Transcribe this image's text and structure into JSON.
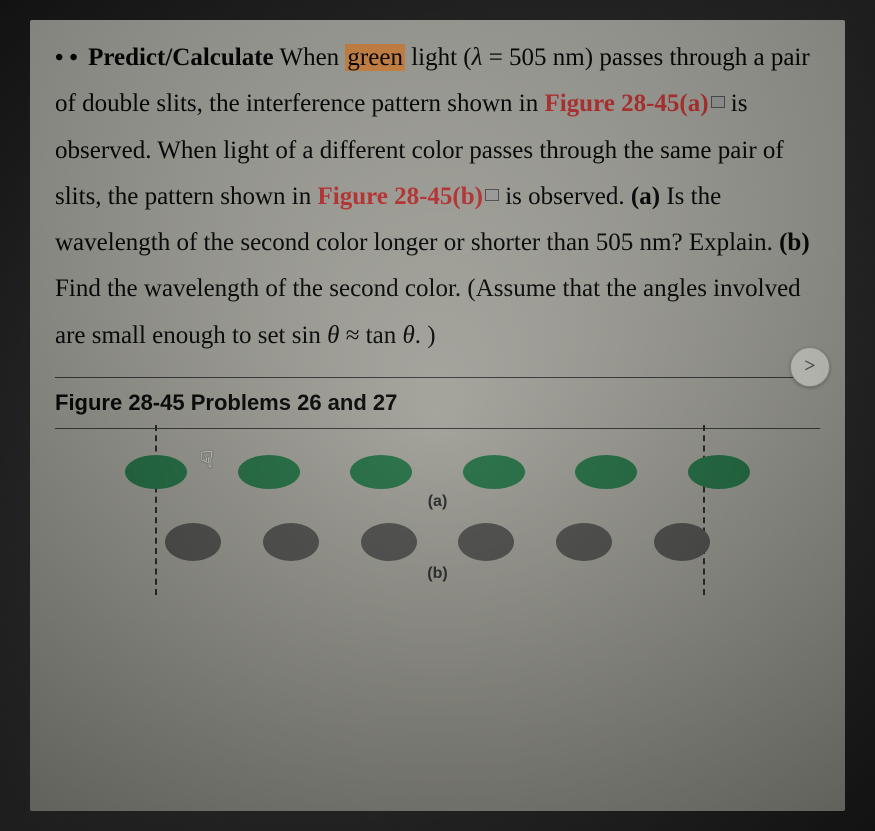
{
  "problem": {
    "bullets": "• •",
    "title": "Predict/Calculate",
    "text_part1": " When ",
    "highlighted": "green",
    "text_part2": " light (",
    "lambda": "λ",
    "text_part3": " = 505 nm) passes through a pair of double slits, the interference pattern shown in ",
    "figure_link_a": "Figure 28-45(a)",
    "text_part4": " is observed. When light of a different color passes through the same pair of slits, the pattern shown in ",
    "figure_link_b": "Figure 28-45(b)",
    "text_part5": " is observed. ",
    "part_a": "(a)",
    "text_part6": " Is the wavelength of the second color longer or shorter than 505 nm? Explain. ",
    "part_b": "(b)",
    "text_part7": " Find the wavelength of the second color. (Assume that the angles involved are small enough to set sin ",
    "theta1": "θ",
    "approx": " ≈ tan ",
    "theta2": "θ",
    "text_part8": ". )"
  },
  "figure": {
    "title_prefix": "Figure 28-45",
    "title_suffix": "   Problems 26 and 27",
    "label_a": "(a)",
    "label_b": "(b)",
    "pattern_a": {
      "dot_count": 6,
      "dot_color": "#1e6b3f",
      "dot_width": 62,
      "dot_height": 34
    },
    "pattern_b": {
      "dot_count": 6,
      "dot_color": "#4a4a48",
      "dot_width": 56,
      "dot_height": 38
    }
  },
  "nav": {
    "next": ">"
  },
  "colors": {
    "highlight_bg": "#e8954a",
    "link_color": "#c83232",
    "green_dot": "#1e6b3f",
    "gray_dot": "#4a4a48"
  }
}
